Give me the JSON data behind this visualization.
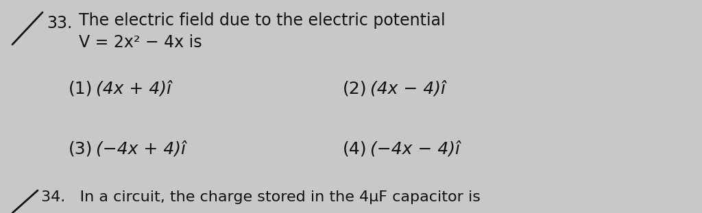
{
  "background_color": "#c8c8c8",
  "question_number": "33.",
  "question_text": "The electric field due to the electric potential",
  "question_line2": "V = 2x² − 4x is",
  "options": [
    {
      "num": "(1)",
      "expr": "(4x + 4)î"
    },
    {
      "num": "(2)",
      "expr": "(4x − 4)î"
    },
    {
      "num": "(3)",
      "expr": "(−4x + 4)î"
    },
    {
      "num": "(4)",
      "expr": "(−4x − 4)î"
    }
  ],
  "bottom_text": "34.   In a circuit, the charge stored in the 4μF capacitor is",
  "text_color": "#111111",
  "font_size_question": 17,
  "font_size_options": 18,
  "font_size_bottom": 16
}
